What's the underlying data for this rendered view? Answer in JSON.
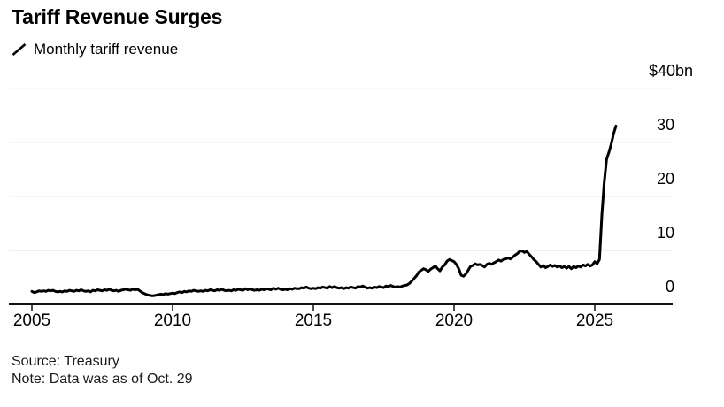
{
  "header": {
    "title": "Tariff Revenue Surges",
    "legend": {
      "marker_icon": "diagonal-line-icon",
      "label": "Monthly tariff revenue"
    }
  },
  "footer": {
    "source": "Source: Treasury",
    "note": "Note: Data was as of Oct. 29"
  },
  "chart_data": {
    "type": "line",
    "title": "Tariff Revenue Surges",
    "series_name": "Monthly tariff revenue",
    "unit": "USD billions per month",
    "frequency": "monthly",
    "start_year": 2005,
    "start_month": 1,
    "end_label": "Oct 2025",
    "ylim": [
      0,
      40
    ],
    "grid": true,
    "legend_position": "top-left",
    "line_color": "#000000",
    "grid_color": "#d9d9d9",
    "axis_color": "#111111",
    "yticks": [
      {
        "value": 40,
        "label": "$40bn",
        "is_top": true
      },
      {
        "value": 30,
        "label": "30",
        "is_top": false
      },
      {
        "value": 20,
        "label": "20",
        "is_top": false
      },
      {
        "value": 10,
        "label": "10",
        "is_top": false
      },
      {
        "value": 0,
        "label": "0",
        "is_top": false
      }
    ],
    "xticks": [
      {
        "value": 2005,
        "label": "2005"
      },
      {
        "value": 2010,
        "label": "2010"
      },
      {
        "value": 2015,
        "label": "2015"
      },
      {
        "value": 2020,
        "label": "2020"
      },
      {
        "value": 2025,
        "label": "2025"
      }
    ],
    "values": [
      2.4,
      2.2,
      2.3,
      2.5,
      2.4,
      2.5,
      2.4,
      2.6,
      2.5,
      2.6,
      2.4,
      2.3,
      2.4,
      2.3,
      2.5,
      2.4,
      2.6,
      2.5,
      2.4,
      2.6,
      2.5,
      2.7,
      2.5,
      2.4,
      2.5,
      2.3,
      2.6,
      2.5,
      2.7,
      2.6,
      2.5,
      2.7,
      2.6,
      2.8,
      2.6,
      2.5,
      2.6,
      2.4,
      2.6,
      2.7,
      2.8,
      2.7,
      2.6,
      2.8,
      2.7,
      2.8,
      2.5,
      2.2,
      2.0,
      1.8,
      1.7,
      1.6,
      1.6,
      1.7,
      1.8,
      1.9,
      1.8,
      2.0,
      1.9,
      2.0,
      2.1,
      2.0,
      2.2,
      2.3,
      2.2,
      2.4,
      2.3,
      2.5,
      2.4,
      2.6,
      2.5,
      2.4,
      2.5,
      2.4,
      2.6,
      2.5,
      2.7,
      2.6,
      2.5,
      2.7,
      2.6,
      2.8,
      2.6,
      2.5,
      2.6,
      2.5,
      2.7,
      2.6,
      2.8,
      2.7,
      2.6,
      2.9,
      2.7,
      2.9,
      2.7,
      2.6,
      2.7,
      2.6,
      2.8,
      2.7,
      2.9,
      2.8,
      2.7,
      3.0,
      2.8,
      3.0,
      2.8,
      2.7,
      2.8,
      2.7,
      2.9,
      2.8,
      3.0,
      2.9,
      2.9,
      3.1,
      3.0,
      3.2,
      3.0,
      2.9,
      3.0,
      2.9,
      3.1,
      3.0,
      3.2,
      3.1,
      3.0,
      3.3,
      3.1,
      3.3,
      3.1,
      3.0,
      3.1,
      2.9,
      3.1,
      3.0,
      3.2,
      3.1,
      3.0,
      3.3,
      3.2,
      3.4,
      3.2,
      3.0,
      3.1,
      3.0,
      3.2,
      3.1,
      3.3,
      3.2,
      3.1,
      3.4,
      3.3,
      3.5,
      3.3,
      3.2,
      3.3,
      3.2,
      3.4,
      3.5,
      3.6,
      3.9,
      4.3,
      4.8,
      5.3,
      6.0,
      6.3,
      6.6,
      6.4,
      6.1,
      6.5,
      6.8,
      7.1,
      6.6,
      6.2,
      6.9,
      7.3,
      8.0,
      8.3,
      8.1,
      7.9,
      7.4,
      6.6,
      5.4,
      5.2,
      5.6,
      6.3,
      7.0,
      7.2,
      7.5,
      7.3,
      7.4,
      7.2,
      6.9,
      7.4,
      7.6,
      7.4,
      7.7,
      7.9,
      8.2,
      8.0,
      8.3,
      8.4,
      8.6,
      8.4,
      8.7,
      9.1,
      9.4,
      9.8,
      9.9,
      9.6,
      9.8,
      9.3,
      8.8,
      8.3,
      7.9,
      7.4,
      6.9,
      7.2,
      6.8,
      7.0,
      7.3,
      7.0,
      7.2,
      6.9,
      7.1,
      6.8,
      7.0,
      6.7,
      7.0,
      6.6,
      7.0,
      6.8,
      7.1,
      6.9,
      7.3,
      7.1,
      7.4,
      7.1,
      7.3,
      7.9,
      7.5,
      8.3,
      16.5,
      22.4,
      26.8,
      28.1,
      29.6,
      31.5,
      33.0
    ]
  }
}
